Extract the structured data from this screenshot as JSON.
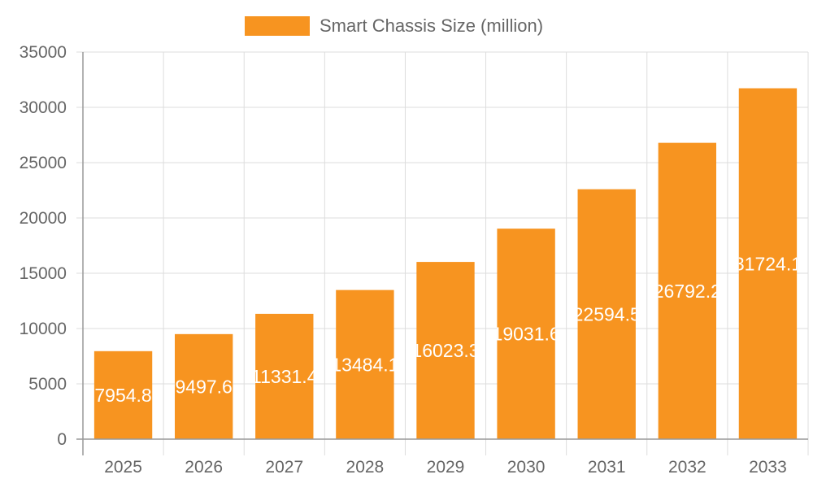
{
  "chart_data": {
    "type": "bar",
    "categories": [
      "2025",
      "2026",
      "2027",
      "2028",
      "2029",
      "2030",
      "2031",
      "2032",
      "2033"
    ],
    "series": [
      {
        "name": "Smart Chassis Size (million)",
        "values": [
          7954.8,
          9497.6,
          11331.4,
          13484.1,
          16023.3,
          19031.6,
          22594.5,
          26792.2,
          31724.1
        ],
        "color": "#f79420"
      }
    ],
    "ylim": [
      0,
      35000
    ],
    "yticks": [
      0,
      5000,
      10000,
      15000,
      20000,
      25000,
      30000,
      35000
    ],
    "grid": true,
    "legend": "top",
    "data_labels": true
  }
}
